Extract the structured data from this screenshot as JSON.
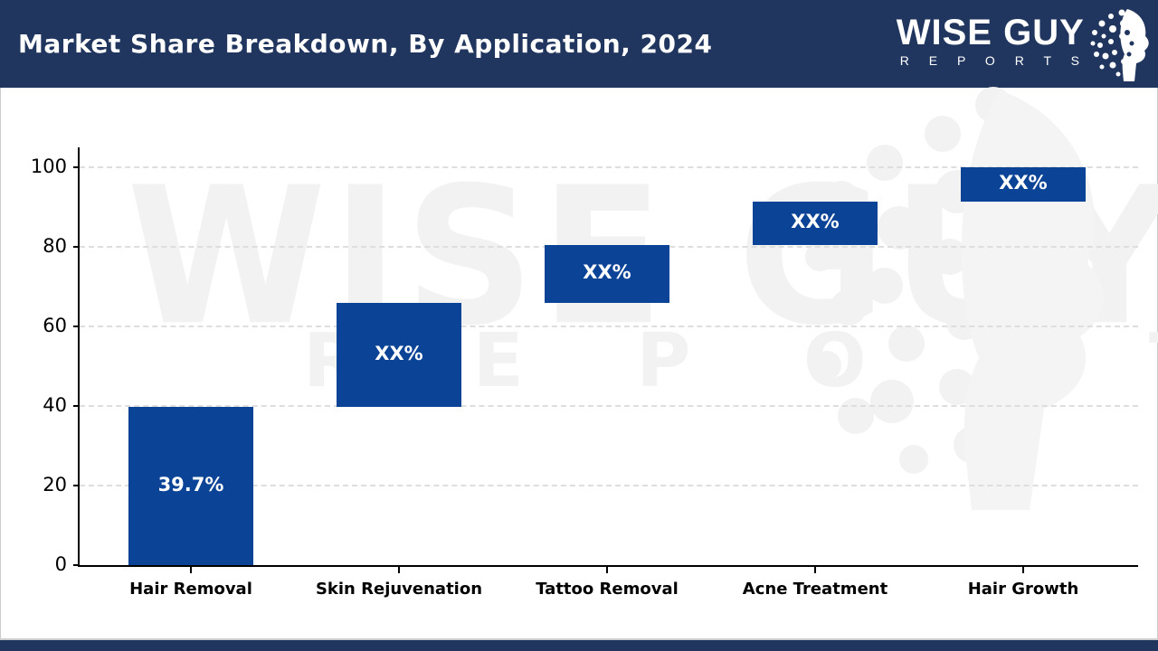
{
  "header": {
    "title": "Market Share Breakdown, By Application, 2024",
    "logo": {
      "line1": "WISE GUY",
      "line2": "R E P O R T S"
    }
  },
  "watermark": {
    "line1": "WISE GUY",
    "line2": "R E P O R T S"
  },
  "chart_data": {
    "type": "bar",
    "subtype": "waterfall",
    "title": "Market Share Breakdown, By Application, 2024",
    "categories": [
      "Hair Removal",
      "Skin Rejuvenation",
      "Tattoo Removal",
      "Acne Treatment",
      "Hair Growth"
    ],
    "segments": [
      {
        "category": "Hair Removal",
        "start": 0,
        "end": 39.7,
        "label": "39.7%"
      },
      {
        "category": "Skin Rejuvenation",
        "start": 39.7,
        "end": 65.9,
        "label": "XX%"
      },
      {
        "category": "Tattoo Removal",
        "start": 65.9,
        "end": 80.4,
        "label": "XX%"
      },
      {
        "category": "Acne Treatment",
        "start": 80.4,
        "end": 91.3,
        "label": "XX%"
      },
      {
        "category": "Hair Growth",
        "start": 91.3,
        "end": 100.0,
        "label": "XX%"
      }
    ],
    "xlabel": "",
    "ylabel": "",
    "ylim": [
      0,
      105
    ],
    "yticks": [
      0,
      20,
      40,
      60,
      80,
      100
    ],
    "grid": true,
    "legend": false,
    "bar_color": "#0b4396"
  },
  "colors": {
    "header_bg": "#20365f",
    "bar": "#0b4396",
    "grid": "#dedede",
    "axis": "#000000",
    "watermark": "#f2f2f2",
    "border": "#cccccc"
  }
}
